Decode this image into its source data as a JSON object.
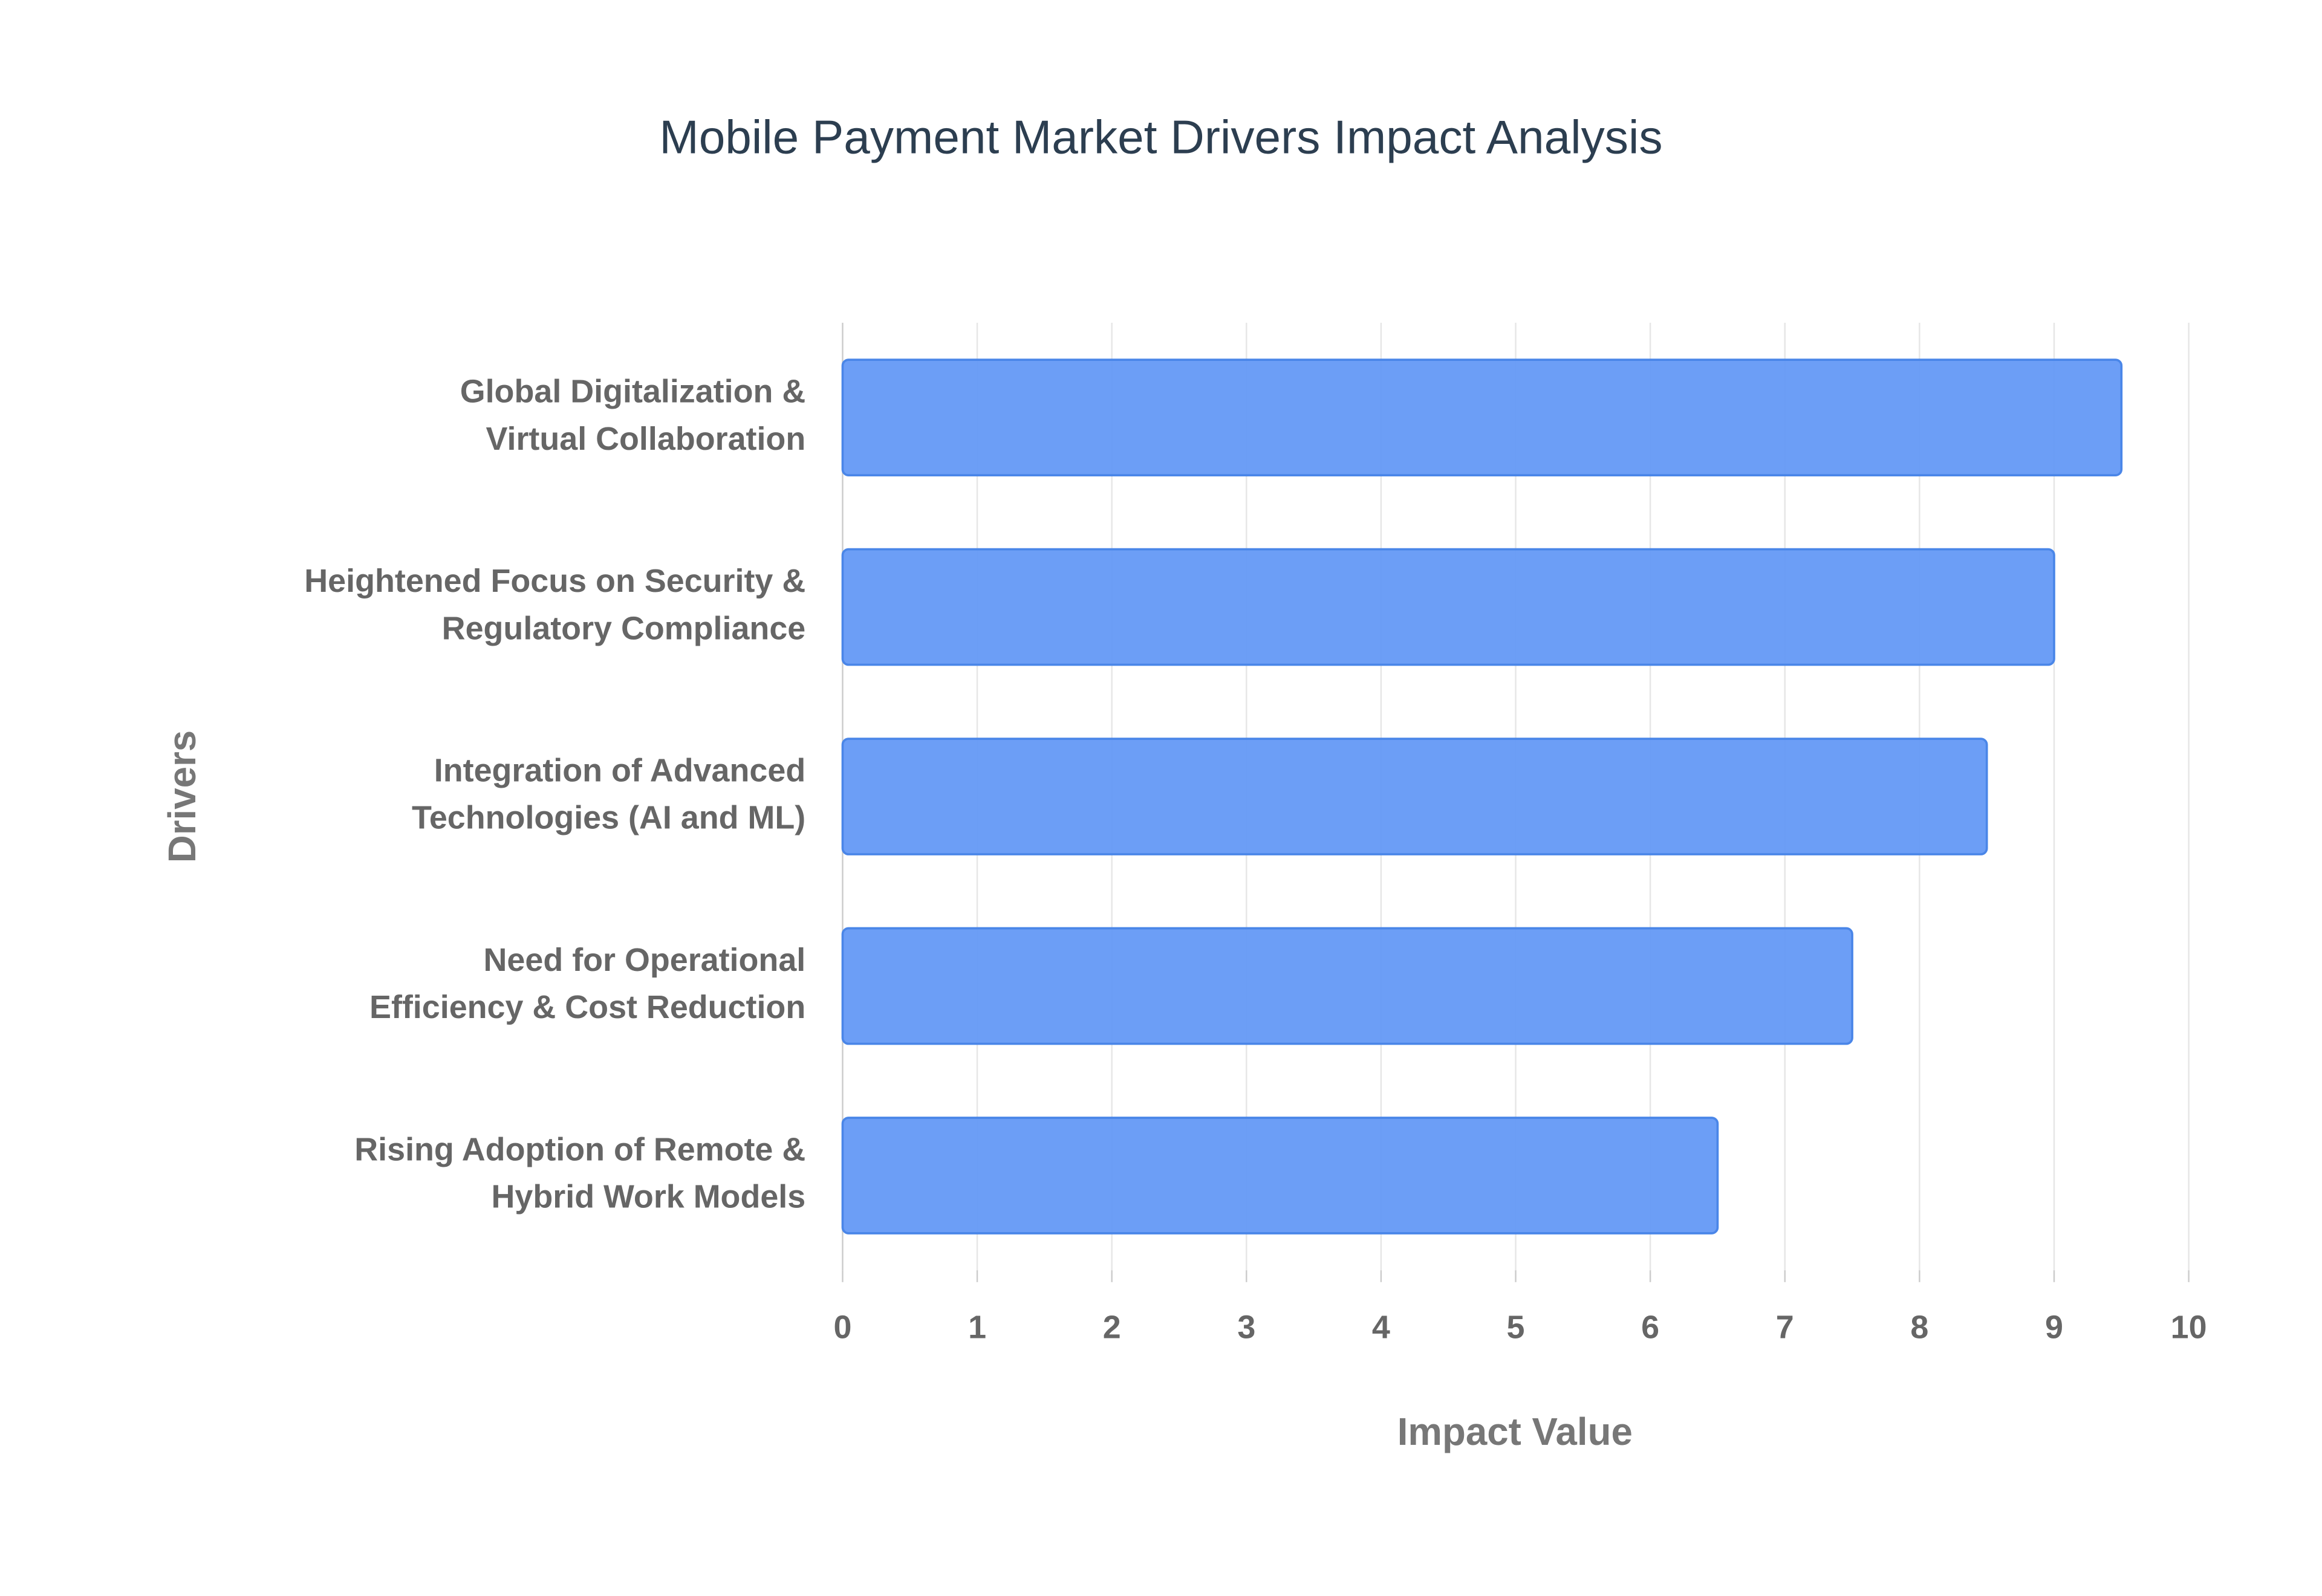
{
  "chart_data": {
    "type": "bar",
    "orientation": "horizontal",
    "title": "Mobile Payment Market Drivers Impact Analysis",
    "x_label": "Impact Value",
    "y_label": "Drivers",
    "categories": [
      "Global Digitalization & Virtual Collaboration",
      "Heightened Focus on Security & Regulatory Compliance",
      "Integration of Advanced Technologies (AI and ML)",
      "Need for Operational Efficiency & Cost Reduction",
      "Rising Adoption of Remote & Hybrid Work Models"
    ],
    "values": [
      9.5,
      9,
      8.5,
      7.5,
      6.5
    ],
    "color": "#6499f5",
    "xlim": [
      0,
      10
    ],
    "xticks": [
      0,
      1,
      2,
      3,
      4,
      5,
      6,
      7,
      8,
      9,
      10
    ],
    "grid": true
  }
}
